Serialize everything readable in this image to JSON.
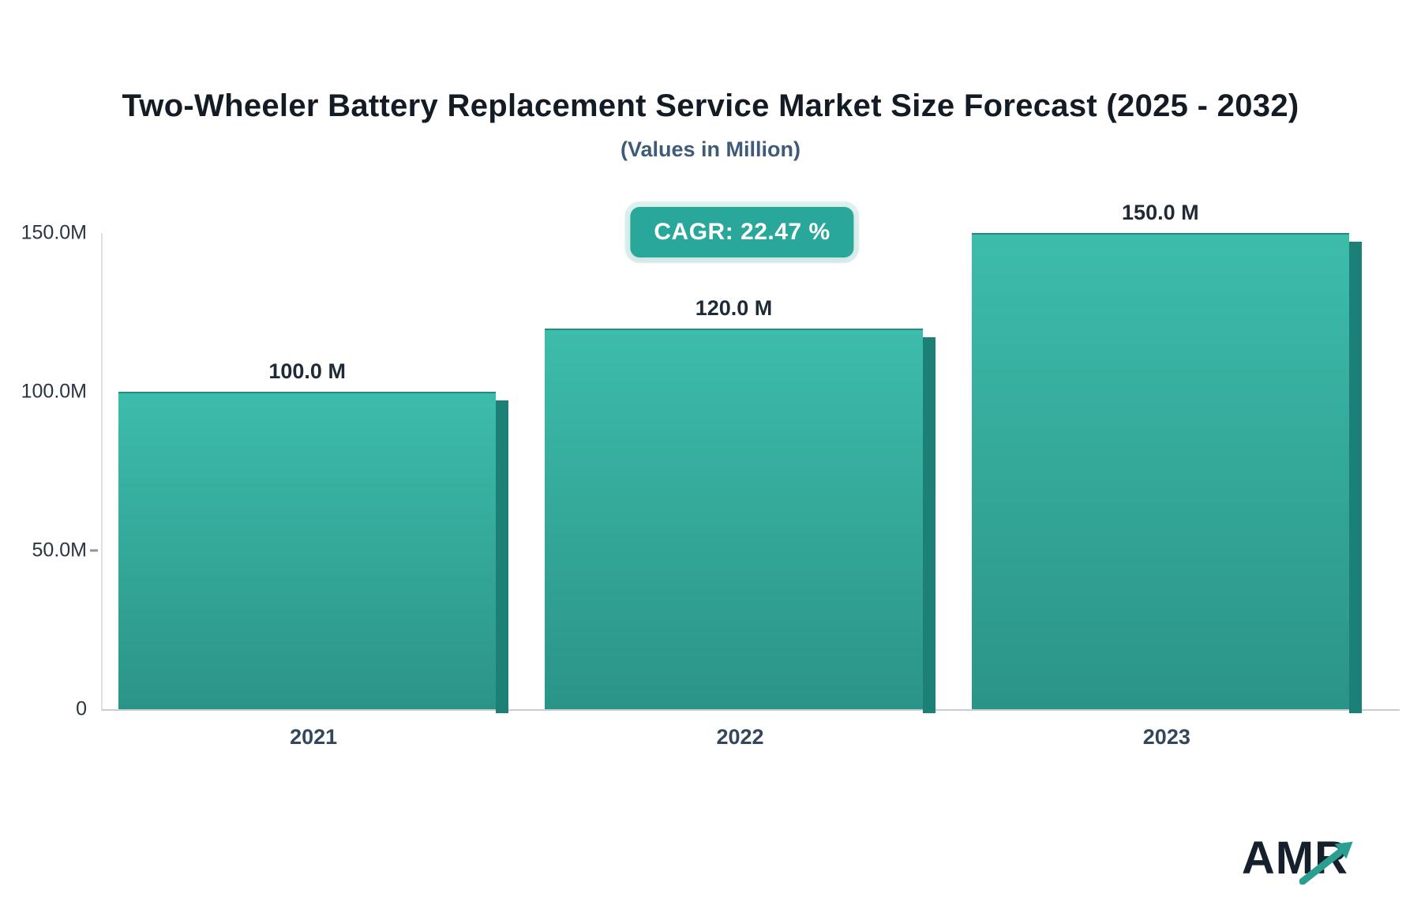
{
  "title": "Two-Wheeler Battery Replacement Service Market Size Forecast (2025 - 2032)",
  "subtitle": "(Values in Million)",
  "cagr_badge": "CAGR: 22.47 %",
  "logo_text": "AMR",
  "chart_data": {
    "type": "bar",
    "categories": [
      "2021",
      "2022",
      "2023"
    ],
    "values": [
      100.0,
      120.0,
      150.0
    ],
    "value_labels": [
      "100.0 M",
      "120.0 M",
      "150.0 M"
    ],
    "unit": "Million",
    "title": "Two-Wheeler Battery Replacement Service Market Size Forecast (2025 - 2032)",
    "subtitle": "(Values in Million)",
    "annotations": [
      "CAGR: 22.47 %"
    ],
    "xlabel": "",
    "ylabel": "",
    "ylim": [
      0,
      150
    ],
    "yticks": [
      {
        "value": 0,
        "label": "0",
        "dash": false
      },
      {
        "value": 50,
        "label": "50.0M",
        "dash": true
      },
      {
        "value": 100,
        "label": "100.0M",
        "dash": false
      },
      {
        "value": 150,
        "label": "150.0M",
        "dash": false
      }
    ],
    "grid": false,
    "legend": false,
    "colors": {
      "bar_gradient_top": "#3dbcab",
      "bar_gradient_bottom": "#2b9488",
      "bar_side": "#1d8076",
      "badge_bg": "#2aa79b",
      "title_text": "#131b24",
      "subtitle_text": "#3e5c78",
      "axis_text": "#2a3540"
    }
  }
}
